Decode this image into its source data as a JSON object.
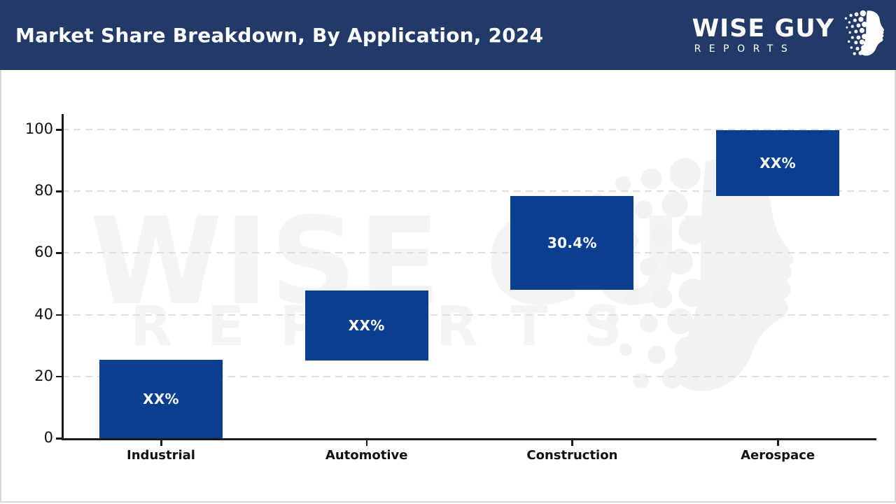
{
  "header": {
    "title": "Market Share Breakdown, By Application, 2024",
    "logo": {
      "line1": "WISE GUY",
      "line2": "REPORTS"
    }
  },
  "watermark": {
    "line1": "WISE GUY",
    "line2": "REPORTS"
  },
  "colors": {
    "header_bg": "#213a67",
    "bar": "#0a3e91",
    "bar_label_text": "#ffffff",
    "axis": "#1a1a1a",
    "gridline": "#dedede",
    "watermark": "#f2f2f2",
    "page_border": "#d9d9d9"
  },
  "chart_data": {
    "type": "bar",
    "subtype": "floating-waterfall",
    "title": "Market Share Breakdown, By Application, 2024",
    "categories": [
      "Industrial",
      "Automotive",
      "Construction",
      "Aerospace"
    ],
    "segments": [
      {
        "category": "Industrial",
        "start": 0,
        "end": 25.4,
        "label": "XX%"
      },
      {
        "category": "Automotive",
        "start": 25.2,
        "end": 47.8,
        "label": "XX%"
      },
      {
        "category": "Construction",
        "start": 48.0,
        "end": 78.4,
        "label": "30.4%"
      },
      {
        "category": "Aerospace",
        "start": 78.4,
        "end": 99.8,
        "label": "XX%"
      }
    ],
    "xlabel": "",
    "ylabel": "",
    "ylim": [
      0,
      100
    ],
    "yticks": [
      0,
      20,
      40,
      60,
      80,
      100
    ],
    "grid": "horizontal-dashed",
    "legend": "none"
  }
}
